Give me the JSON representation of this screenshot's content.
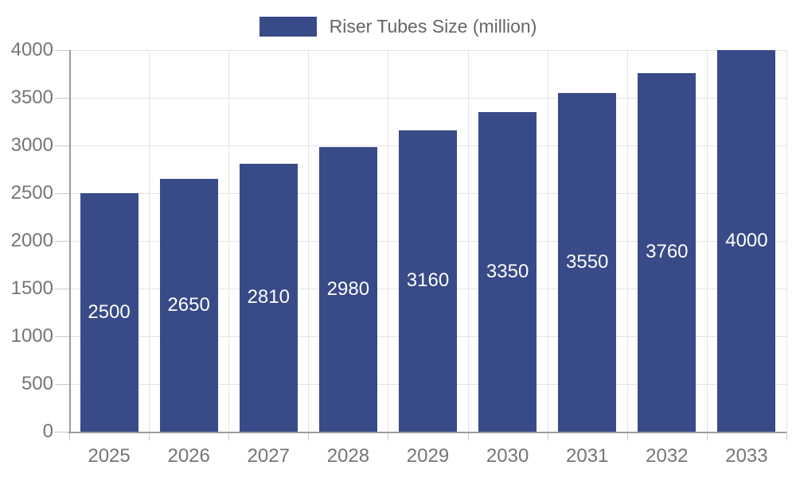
{
  "legend": {
    "label": "Riser Tubes Size (million)"
  },
  "chart_data": {
    "type": "bar",
    "title": "",
    "categories": [
      "2025",
      "2026",
      "2027",
      "2028",
      "2029",
      "2030",
      "2031",
      "2032",
      "2033"
    ],
    "series": [
      {
        "name": "Riser Tubes Size (million)",
        "values": [
          2500,
          2650,
          2810,
          2980,
          3160,
          3350,
          3550,
          3760,
          4000
        ]
      }
    ],
    "xlabel": "",
    "ylabel": "",
    "ylim": [
      0,
      4000
    ],
    "yticks": [
      0,
      500,
      1000,
      1500,
      2000,
      2500,
      3000,
      3500,
      4000
    ],
    "grid": true,
    "legend_position": "top-center",
    "bar_labels_inside": true,
    "colors": {
      "bar": "#384A87",
      "grid": "#E3E3E3",
      "axis": "#9C9C9C",
      "tick": "#C9C9C9",
      "axis_text": "#757575",
      "bar_label_text": "#FFFFFF",
      "legend_text": "#666666",
      "background": "#FFFFFF"
    }
  }
}
